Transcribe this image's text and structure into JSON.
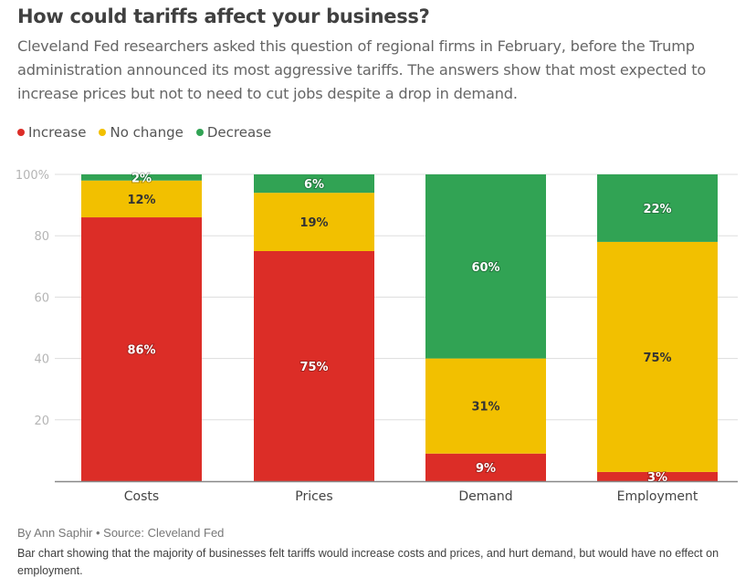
{
  "header": {
    "title": "How could tariffs affect your business?",
    "subtitle": "Cleveland Fed researchers asked this question of regional firms in February, before the Trump administration announced its most aggressive tariffs. The answers show that most expected to increase prices but not to need to cut jobs despite a drop in demand."
  },
  "colors": {
    "increase": "#dc2d27",
    "no_change": "#f2c000",
    "decrease": "#31a354",
    "gridline": "#dddddd",
    "baseline": "#888888"
  },
  "footer": {
    "byline": "By Ann Saphir • Source: Cleveland Fed",
    "caption": "Bar chart showing that the majority of businesses felt tariffs would increase costs and prices, and hurt demand, but would have no effect on employment."
  },
  "chart_data": {
    "type": "bar",
    "stacked": true,
    "title": "How could tariffs affect your business?",
    "xlabel": "",
    "ylabel": "",
    "ylim": [
      0,
      100
    ],
    "yticks": [
      20,
      40,
      60,
      80,
      100
    ],
    "ytick_labels": [
      "20",
      "40",
      "60",
      "80",
      "100%"
    ],
    "grid": true,
    "legend_position": "top-left",
    "categories": [
      "Costs",
      "Prices",
      "Demand",
      "Employment"
    ],
    "series": [
      {
        "name": "Increase",
        "key": "increase",
        "values": [
          86,
          75,
          9,
          3
        ],
        "labels": [
          "86%",
          "75%",
          "9%",
          "3%"
        ],
        "label_color": "#ffffff"
      },
      {
        "name": "No change",
        "key": "no_change",
        "values": [
          12,
          19,
          31,
          75
        ],
        "labels": [
          "12%",
          "19%",
          "31%",
          "75%"
        ],
        "label_color": "#333333"
      },
      {
        "name": "Decrease",
        "key": "decrease",
        "values": [
          2,
          6,
          60,
          22
        ],
        "labels": [
          "2%",
          "6%",
          "60%",
          "22%"
        ],
        "label_color": "#ffffff"
      }
    ]
  }
}
